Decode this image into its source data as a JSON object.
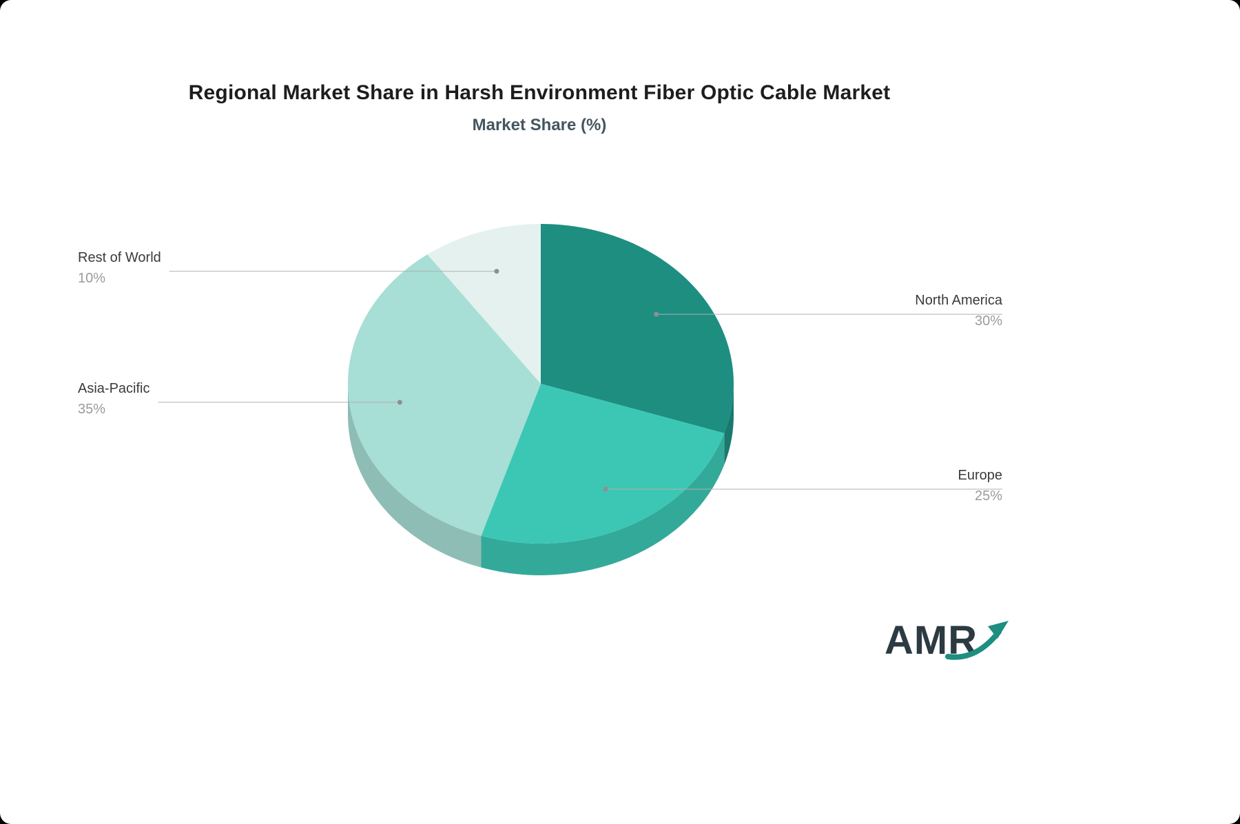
{
  "chart_data": {
    "type": "pie",
    "title": "Regional Market Share in Harsh Environment Fiber Optic Cable Market",
    "subtitle": "Market Share (%)",
    "unit": "%",
    "labels": [
      "North America",
      "Europe",
      "Asia-Pacific",
      "Rest of World"
    ],
    "values": [
      30,
      25,
      35,
      10
    ],
    "display_values": [
      "30%",
      "25%",
      "35%",
      "10%"
    ],
    "colors": [
      "#1e8e81",
      "#3cc7b5",
      "#a7ded6",
      "#e4f1ef"
    ],
    "start_angle_deg": 0,
    "direction": "clockwise",
    "effect": "3d",
    "legend_position": "callout-labels",
    "label_sides": [
      "right",
      "right",
      "left",
      "left"
    ]
  },
  "logo": {
    "text": "AMR"
  }
}
